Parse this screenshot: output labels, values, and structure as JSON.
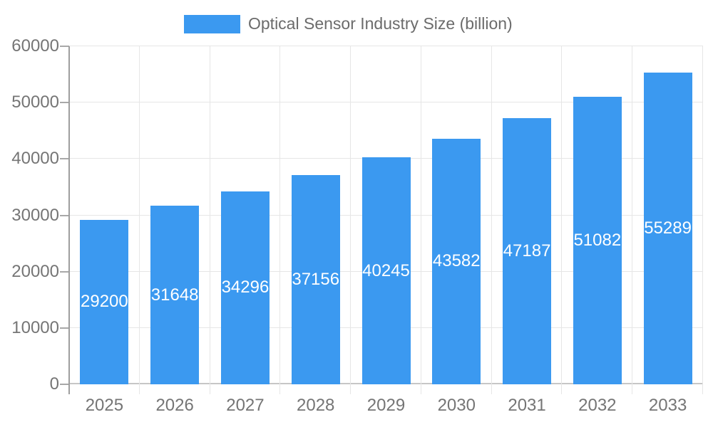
{
  "chart_data": {
    "type": "bar",
    "title": "Optical Sensor Industry Size (billion)",
    "categories": [
      "2025",
      "2026",
      "2027",
      "2028",
      "2029",
      "2030",
      "2031",
      "2032",
      "2033"
    ],
    "series": [
      {
        "name": "Optical Sensor Industry Size (billion)",
        "values": [
          29200,
          31648,
          34296,
          37156,
          40245,
          43582,
          47187,
          51082,
          55289
        ]
      }
    ],
    "xlabel": "",
    "ylabel": "",
    "ylim": [
      0,
      60000
    ],
    "ytick_step": 10000,
    "y_tick_labels": [
      "0",
      "10000",
      "20000",
      "30000",
      "40000",
      "50000",
      "60000"
    ],
    "grid": true,
    "legend_position": "top",
    "value_labels": "inside bars, white, centered"
  },
  "legend": {
    "label": "Optical Sensor Industry Size (billion)"
  },
  "colors": {
    "bar": "#3b99f0",
    "grid_line": "#e6e6e6",
    "axis_baseline": "#c6c6c6",
    "y_axis_line": "#9e9e9e",
    "tick": "#a8a8a8",
    "axis_text": "#757575",
    "legend_text": "#6b6b6b",
    "bar_label_text": "#ffffff",
    "background": "#ffffff"
  }
}
